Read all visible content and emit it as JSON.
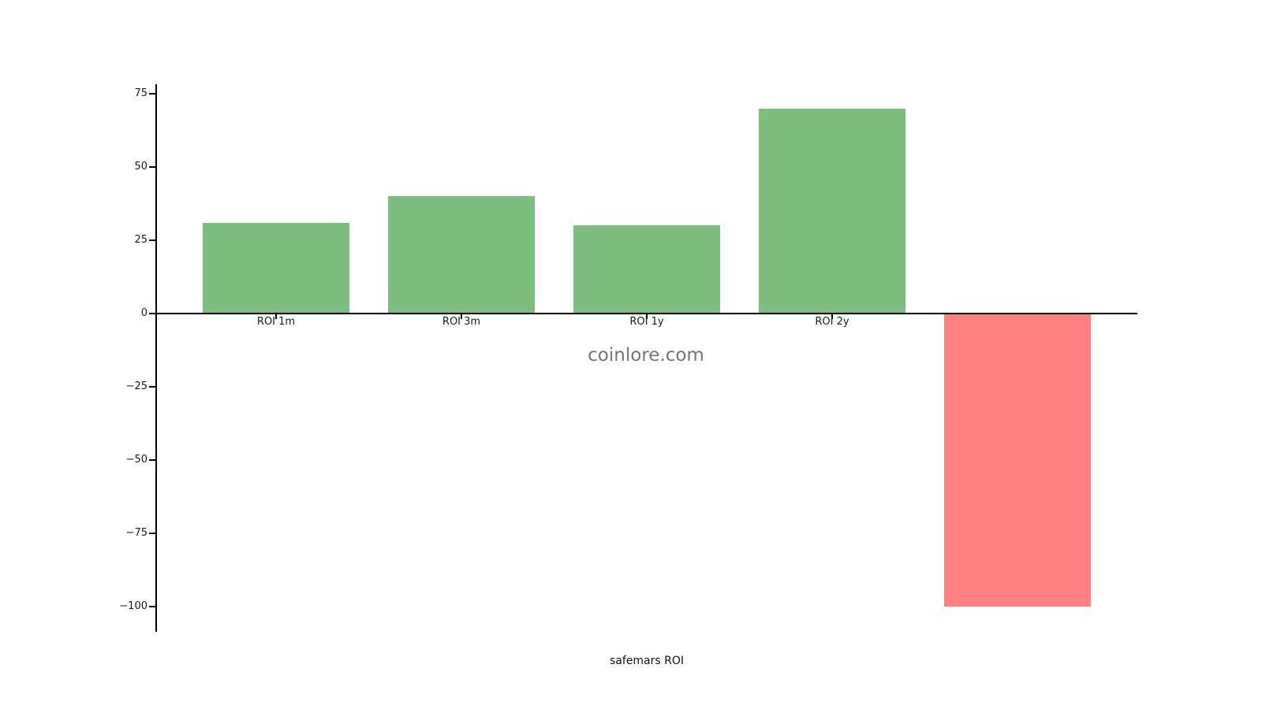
{
  "chart_data": {
    "type": "bar",
    "title": "",
    "xlabel": "safemars ROI",
    "ylabel": "",
    "watermark": "coinlore.com",
    "categories": [
      "ROI 1m",
      "ROI 3m",
      "ROI 1y",
      "ROI 2y",
      ""
    ],
    "values": [
      31,
      40,
      30,
      70,
      -100
    ],
    "y_ticks": [
      75,
      50,
      25,
      0,
      -25,
      -50,
      -75,
      -100
    ],
    "y_tick_labels": [
      "75",
      "50",
      "25",
      "0",
      "−25",
      "−50",
      "−75",
      "−100"
    ],
    "ylim": [
      -108.5,
      78
    ],
    "grid": false,
    "legend": null,
    "colors": {
      "positive_bar": "#7dbe80",
      "negative_bar": "#ff8080",
      "axis": "#000000",
      "tick_label": "#1a1a1a",
      "watermark": "#757575",
      "background": "#ffffff"
    }
  }
}
